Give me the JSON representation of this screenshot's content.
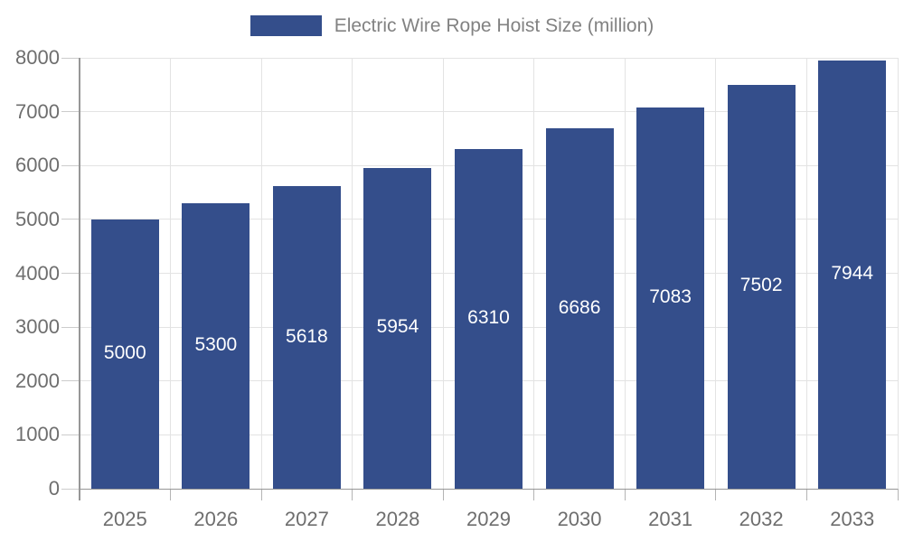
{
  "chart_data": {
    "type": "bar",
    "title": "Electric Wire Rope Hoist Size (million)",
    "legend_entries": [
      "Electric Wire Rope Hoist Size (million)"
    ],
    "legend_position": "top-center",
    "categories": [
      "2025",
      "2026",
      "2027",
      "2028",
      "2029",
      "2030",
      "2031",
      "2032",
      "2033"
    ],
    "values": [
      5000,
      5300,
      5618,
      5954,
      6310,
      6686,
      7083,
      7502,
      7944
    ],
    "xlabel": "",
    "ylabel": "",
    "ylim": [
      0,
      8000
    ],
    "y_ticks": [
      0,
      1000,
      2000,
      3000,
      4000,
      5000,
      6000,
      7000,
      8000
    ],
    "grid": true,
    "value_labels_inside_bars": true,
    "colors": {
      "bar": "#344e8b",
      "value_label": "#ffffff",
      "axis_label": "#6e6e6e",
      "legend_text": "#828282",
      "grid_line": "#e3e3e3",
      "tick_line": "#cccccc",
      "axis_line": "#979797",
      "background": "#ffffff"
    }
  }
}
